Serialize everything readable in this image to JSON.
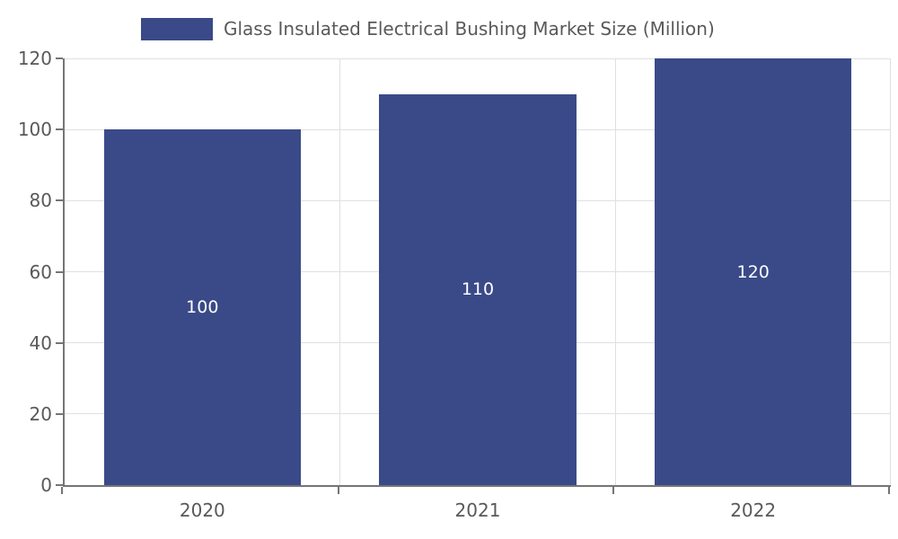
{
  "chart_data": {
    "type": "bar",
    "title": "Glass Insulated Electrical Bushing Market Size (Million)",
    "categories": [
      "2020",
      "2021",
      "2022"
    ],
    "values": [
      100,
      110,
      120
    ],
    "data_labels": [
      "100",
      "110",
      "120"
    ],
    "xlabel": "",
    "ylabel": "",
    "ylim": [
      0,
      120
    ],
    "yticks": [
      0,
      20,
      40,
      60,
      80,
      100,
      120
    ],
    "grid": true,
    "legend_position": "top",
    "colors": {
      "bar": "#3a4a88",
      "data_label": "#ffffff",
      "axis": "#757575",
      "gridline": "#e0e0e0",
      "tick_label": "#595959",
      "title": "#595959",
      "background": "#ffffff"
    }
  }
}
